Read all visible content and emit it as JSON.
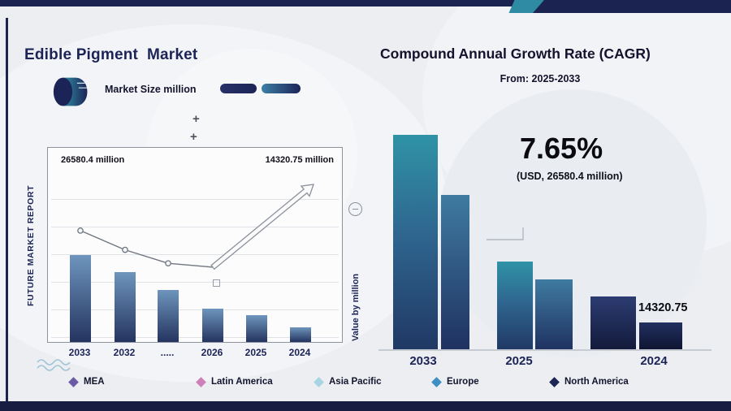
{
  "header": {
    "title": "Edible Pigment  Market",
    "market_size_label": "Market Size million"
  },
  "regions": [
    {
      "label": "MEA",
      "color": "#6b5aa8"
    },
    {
      "label": "Latin America",
      "color": "#cc7fb8"
    },
    {
      "label": "Asia Pacific",
      "color": "#a7d5e4"
    },
    {
      "label": "Europe",
      "color": "#3e8ec6"
    },
    {
      "label": "North America",
      "color": "#1c2553"
    }
  ],
  "colors": {
    "navy": "#1c2457",
    "teal": "#2f8ba3",
    "background": "#eceef1"
  },
  "chart_data": [
    {
      "type": "bar",
      "name": "future-market-trend",
      "legend": "Market Size million",
      "ylabel": "FUTURE MARKET REPORT",
      "categories": [
        "2033",
        "2032",
        ".....",
        "2026",
        "2025",
        "2024"
      ],
      "bar_values_pct": [
        100,
        80,
        60,
        38,
        31,
        17
      ],
      "line_values_pct": [
        57,
        47,
        40,
        38
      ],
      "annotation_left": "26580.4 million",
      "annotation_right": "14320.75 million",
      "known_values_million": {
        "2033": 26580.4,
        "2024": 14320.75
      },
      "note": "Bar heights are % of tallest bar; trend line descends then an arrow rises toward 2033 value"
    },
    {
      "type": "bar",
      "name": "cagr-comparison",
      "title": "Compound Annual Growth Rate (CAGR)",
      "subtitle": "From: 2025-2033",
      "cagr_display": "7.65%",
      "cagr_percent": 7.65,
      "cagr_detail": "(USD, 26580.4 million)",
      "ylabel": "Value by million",
      "categories": [
        "2033",
        "2025",
        "2024"
      ],
      "groups": [
        {
          "label": "2033",
          "bars_pct": [
            100,
            72
          ]
        },
        {
          "label": "2025",
          "bars_pct": [
            41,
            33
          ]
        },
        {
          "label": "2024",
          "bars_pct": [
            25,
            13
          ],
          "value_label": "14320.75"
        }
      ],
      "known_values_million": {
        "2033": 26580.4,
        "2024": 14320.75
      }
    }
  ]
}
